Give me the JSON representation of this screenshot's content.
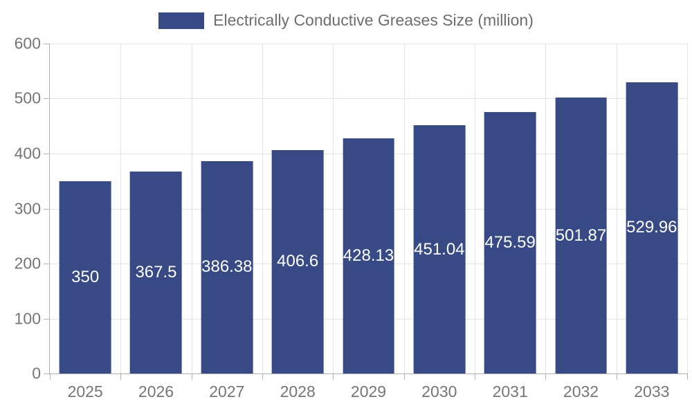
{
  "legend": {
    "label": "Electrically Conductive Greases Size (million)"
  },
  "colors": {
    "bar": "#374A85",
    "grid": "#e4e4e4",
    "axis": "#b0b0b0",
    "tick_text": "#757575",
    "legend_text": "#6d6d6d",
    "bar_label_text": "#ffffff",
    "background": "#ffffff"
  },
  "chart_data": {
    "type": "bar",
    "title": "Electrically Conductive Greases Size (million)",
    "categories": [
      "2025",
      "2026",
      "2027",
      "2028",
      "2029",
      "2030",
      "2031",
      "2032",
      "2033"
    ],
    "values": [
      350,
      367.5,
      386.38,
      406.6,
      428.13,
      451.04,
      475.59,
      501.87,
      529.96
    ],
    "value_labels": [
      "350",
      "367.5",
      "386.38",
      "406.6",
      "428.13",
      "451.04",
      "475.59",
      "501.87",
      "529.96"
    ],
    "xlabel": "",
    "ylabel": "",
    "ylim": [
      0,
      600
    ],
    "yticks": [
      0,
      100,
      200,
      300,
      400,
      500,
      600
    ],
    "grid": "both",
    "legend_position": "top-center",
    "bar_label_position": "inside-middle",
    "bar_width_fraction": 0.73
  }
}
